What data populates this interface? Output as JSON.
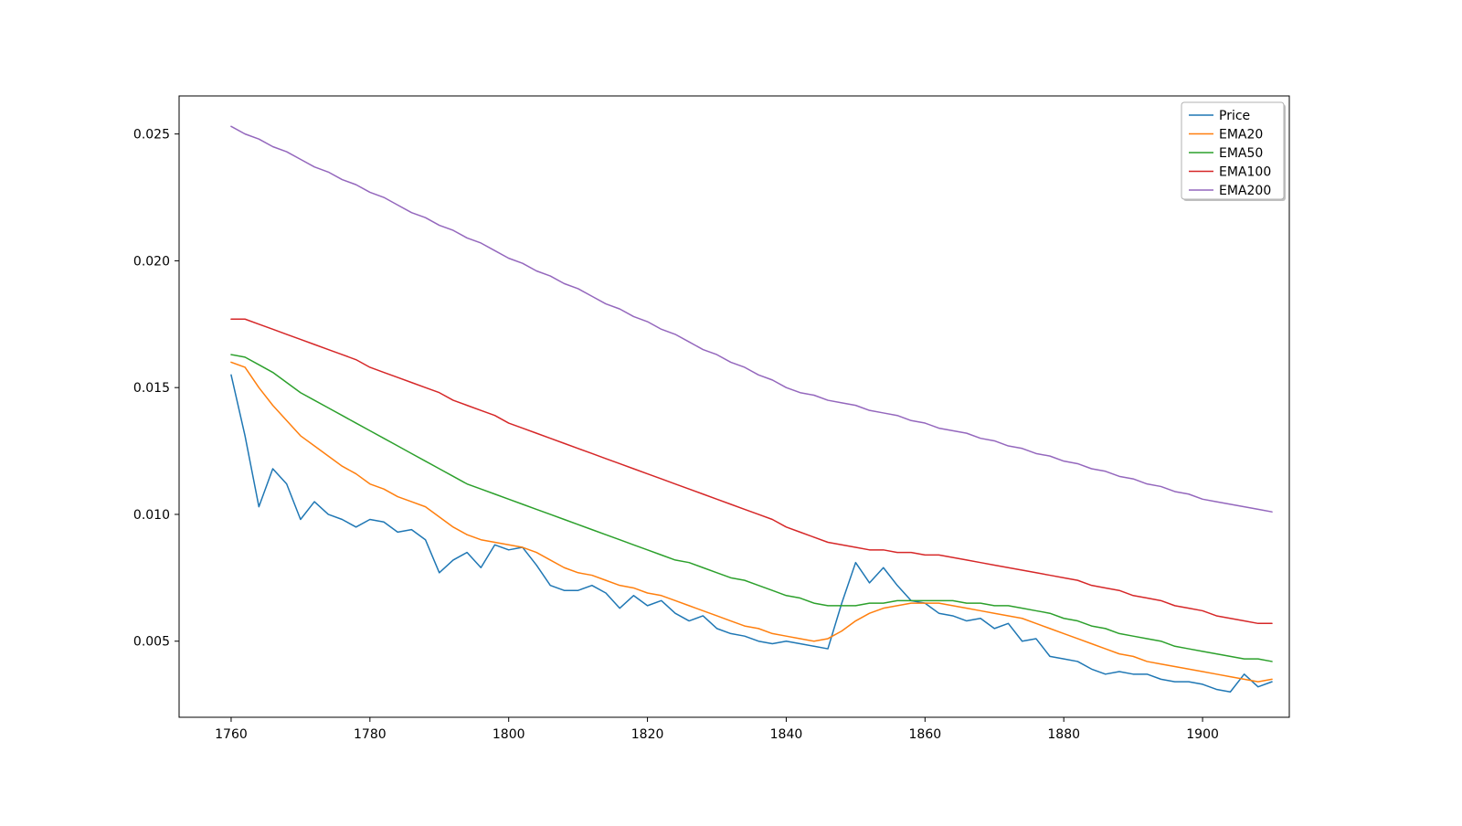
{
  "figure": {
    "background": "#ffffff"
  },
  "chart_data": {
    "type": "line",
    "title": "",
    "xlabel": "",
    "ylabel": "",
    "grid": false,
    "xlim": [
      1752.5,
      1912.5
    ],
    "ylim": [
      0.002,
      0.0265
    ],
    "xticks": {
      "values": [
        1760,
        1780,
        1800,
        1820,
        1840,
        1860,
        1880,
        1900
      ],
      "labels": [
        "1760",
        "1780",
        "1800",
        "1820",
        "1840",
        "1860",
        "1880",
        "1900"
      ]
    },
    "yticks": {
      "values": [
        0.005,
        0.01,
        0.015,
        0.02,
        0.025
      ],
      "labels": [
        "0.005",
        "0.010",
        "0.015",
        "0.020",
        "0.025"
      ]
    },
    "legend": {
      "position": "upper right",
      "shadow": true,
      "entries": [
        "Price",
        "EMA20",
        "EMA50",
        "EMA100",
        "EMA200"
      ]
    },
    "x": [
      1760,
      1762,
      1764,
      1766,
      1768,
      1770,
      1772,
      1774,
      1776,
      1778,
      1780,
      1782,
      1784,
      1786,
      1788,
      1790,
      1792,
      1794,
      1796,
      1798,
      1800,
      1802,
      1804,
      1806,
      1808,
      1810,
      1812,
      1814,
      1816,
      1818,
      1820,
      1822,
      1824,
      1826,
      1828,
      1830,
      1832,
      1834,
      1836,
      1838,
      1840,
      1842,
      1844,
      1846,
      1848,
      1850,
      1852,
      1854,
      1856,
      1858,
      1860,
      1862,
      1864,
      1866,
      1868,
      1870,
      1872,
      1874,
      1876,
      1878,
      1880,
      1882,
      1884,
      1886,
      1888,
      1890,
      1892,
      1894,
      1896,
      1898,
      1900,
      1902,
      1904,
      1906,
      1908,
      1910
    ],
    "series": [
      {
        "name": "Price",
        "color": "#1f77b4",
        "values": [
          0.0155,
          0.0131,
          0.0103,
          0.0118,
          0.0112,
          0.0098,
          0.0105,
          0.01,
          0.0098,
          0.0095,
          0.0098,
          0.0097,
          0.0093,
          0.0094,
          0.009,
          0.0077,
          0.0082,
          0.0085,
          0.0079,
          0.0088,
          0.0086,
          0.0087,
          0.008,
          0.0072,
          0.007,
          0.007,
          0.0072,
          0.0069,
          0.0063,
          0.0068,
          0.0064,
          0.0066,
          0.0061,
          0.0058,
          0.006,
          0.0055,
          0.0053,
          0.0052,
          0.005,
          0.0049,
          0.005,
          0.0049,
          0.0048,
          0.0047,
          0.0065,
          0.0081,
          0.0073,
          0.0079,
          0.0072,
          0.0066,
          0.0065,
          0.0061,
          0.006,
          0.0058,
          0.0059,
          0.0055,
          0.0057,
          0.005,
          0.0051,
          0.0044,
          0.0043,
          0.0042,
          0.0039,
          0.0037,
          0.0038,
          0.0037,
          0.0037,
          0.0035,
          0.0034,
          0.0034,
          0.0033,
          0.0031,
          0.003,
          0.0037,
          0.0032,
          0.0034
        ]
      },
      {
        "name": "EMA20",
        "color": "#ff7f0e",
        "values": [
          0.016,
          0.0158,
          0.015,
          0.0143,
          0.0137,
          0.0131,
          0.0127,
          0.0123,
          0.0119,
          0.0116,
          0.0112,
          0.011,
          0.0107,
          0.0105,
          0.0103,
          0.0099,
          0.0095,
          0.0092,
          0.009,
          0.0089,
          0.0088,
          0.0087,
          0.0085,
          0.0082,
          0.0079,
          0.0077,
          0.0076,
          0.0074,
          0.0072,
          0.0071,
          0.0069,
          0.0068,
          0.0066,
          0.0064,
          0.0062,
          0.006,
          0.0058,
          0.0056,
          0.0055,
          0.0053,
          0.0052,
          0.0051,
          0.005,
          0.0051,
          0.0054,
          0.0058,
          0.0061,
          0.0063,
          0.0064,
          0.0065,
          0.0065,
          0.0065,
          0.0064,
          0.0063,
          0.0062,
          0.0061,
          0.006,
          0.0059,
          0.0057,
          0.0055,
          0.0053,
          0.0051,
          0.0049,
          0.0047,
          0.0045,
          0.0044,
          0.0042,
          0.0041,
          0.004,
          0.0039,
          0.0038,
          0.0037,
          0.0036,
          0.0035,
          0.0034,
          0.0035
        ]
      },
      {
        "name": "EMA50",
        "color": "#2ca02c",
        "values": [
          0.0163,
          0.0162,
          0.0159,
          0.0156,
          0.0152,
          0.0148,
          0.0145,
          0.0142,
          0.0139,
          0.0136,
          0.0133,
          0.013,
          0.0127,
          0.0124,
          0.0121,
          0.0118,
          0.0115,
          0.0112,
          0.011,
          0.0108,
          0.0106,
          0.0104,
          0.0102,
          0.01,
          0.0098,
          0.0096,
          0.0094,
          0.0092,
          0.009,
          0.0088,
          0.0086,
          0.0084,
          0.0082,
          0.0081,
          0.0079,
          0.0077,
          0.0075,
          0.0074,
          0.0072,
          0.007,
          0.0068,
          0.0067,
          0.0065,
          0.0064,
          0.0064,
          0.0064,
          0.0065,
          0.0065,
          0.0066,
          0.0066,
          0.0066,
          0.0066,
          0.0066,
          0.0065,
          0.0065,
          0.0064,
          0.0064,
          0.0063,
          0.0062,
          0.0061,
          0.0059,
          0.0058,
          0.0056,
          0.0055,
          0.0053,
          0.0052,
          0.0051,
          0.005,
          0.0048,
          0.0047,
          0.0046,
          0.0045,
          0.0044,
          0.0043,
          0.0043,
          0.0042
        ]
      },
      {
        "name": "EMA100",
        "color": "#d62728",
        "values": [
          0.0177,
          0.0177,
          0.0175,
          0.0173,
          0.0171,
          0.0169,
          0.0167,
          0.0165,
          0.0163,
          0.0161,
          0.0158,
          0.0156,
          0.0154,
          0.0152,
          0.015,
          0.0148,
          0.0145,
          0.0143,
          0.0141,
          0.0139,
          0.0136,
          0.0134,
          0.0132,
          0.013,
          0.0128,
          0.0126,
          0.0124,
          0.0122,
          0.012,
          0.0118,
          0.0116,
          0.0114,
          0.0112,
          0.011,
          0.0108,
          0.0106,
          0.0104,
          0.0102,
          0.01,
          0.0098,
          0.0095,
          0.0093,
          0.0091,
          0.0089,
          0.0088,
          0.0087,
          0.0086,
          0.0086,
          0.0085,
          0.0085,
          0.0084,
          0.0084,
          0.0083,
          0.0082,
          0.0081,
          0.008,
          0.0079,
          0.0078,
          0.0077,
          0.0076,
          0.0075,
          0.0074,
          0.0072,
          0.0071,
          0.007,
          0.0068,
          0.0067,
          0.0066,
          0.0064,
          0.0063,
          0.0062,
          0.006,
          0.0059,
          0.0058,
          0.0057,
          0.0057
        ]
      },
      {
        "name": "EMA200",
        "color": "#9467bd",
        "values": [
          0.0253,
          0.025,
          0.0248,
          0.0245,
          0.0243,
          0.024,
          0.0237,
          0.0235,
          0.0232,
          0.023,
          0.0227,
          0.0225,
          0.0222,
          0.0219,
          0.0217,
          0.0214,
          0.0212,
          0.0209,
          0.0207,
          0.0204,
          0.0201,
          0.0199,
          0.0196,
          0.0194,
          0.0191,
          0.0189,
          0.0186,
          0.0183,
          0.0181,
          0.0178,
          0.0176,
          0.0173,
          0.0171,
          0.0168,
          0.0165,
          0.0163,
          0.016,
          0.0158,
          0.0155,
          0.0153,
          0.015,
          0.0148,
          0.0147,
          0.0145,
          0.0144,
          0.0143,
          0.0141,
          0.014,
          0.0139,
          0.0137,
          0.0136,
          0.0134,
          0.0133,
          0.0132,
          0.013,
          0.0129,
          0.0127,
          0.0126,
          0.0124,
          0.0123,
          0.0121,
          0.012,
          0.0118,
          0.0117,
          0.0115,
          0.0114,
          0.0112,
          0.0111,
          0.0109,
          0.0108,
          0.0106,
          0.0105,
          0.0104,
          0.0103,
          0.0102,
          0.0101
        ]
      }
    ]
  }
}
